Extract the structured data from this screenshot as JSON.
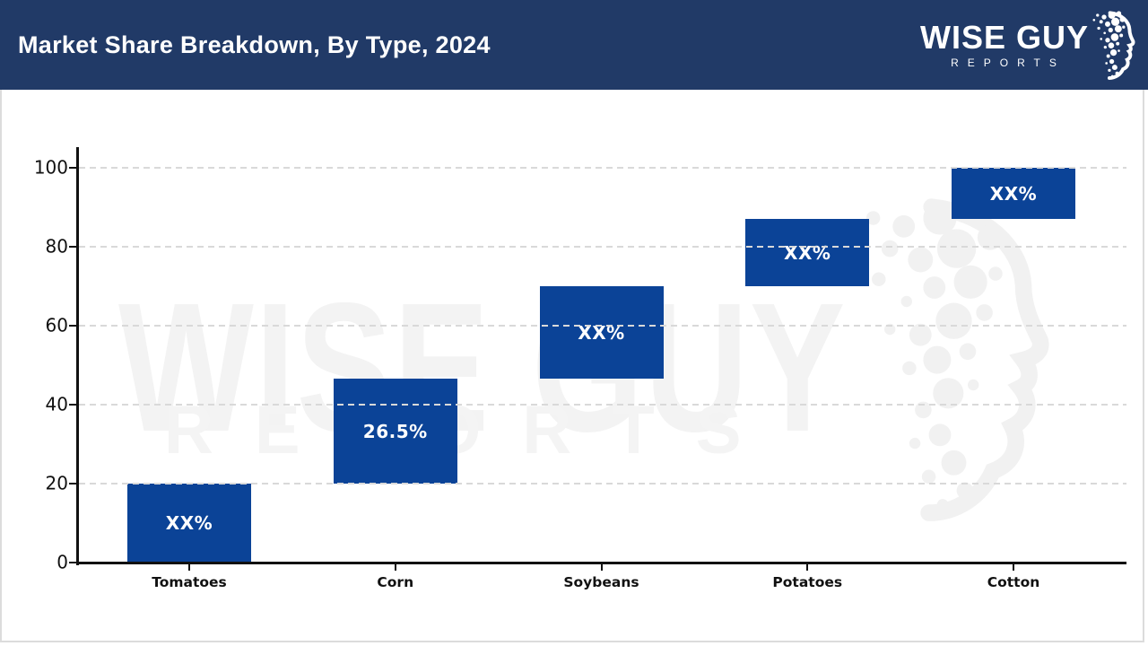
{
  "header": {
    "title": "Market Share Breakdown, By Type, 2024",
    "logo": {
      "line1": "WISE GUY",
      "line2": "REPORTS"
    }
  },
  "watermark": {
    "line1": "WISE GUY",
    "line2": "REPORTS"
  },
  "chart_data": {
    "type": "bar",
    "subtype": "waterfall-floating-bars",
    "title": "Market Share Breakdown, By Type, 2024",
    "categories": [
      "Tomatoes",
      "Corn",
      "Soybeans",
      "Potatoes",
      "Cotton"
    ],
    "segments": [
      {
        "category": "Tomatoes",
        "start": 0,
        "end": 20,
        "label": "XX%"
      },
      {
        "category": "Corn",
        "start": 20,
        "end": 46.5,
        "label": "26.5%"
      },
      {
        "category": "Soybeans",
        "start": 46.5,
        "end": 70,
        "label": "XX%"
      },
      {
        "category": "Potatoes",
        "start": 70,
        "end": 87,
        "label": "XX%"
      },
      {
        "category": "Cotton",
        "start": 87,
        "end": 100,
        "label": "XX%"
      }
    ],
    "xlabel": "",
    "ylabel": "",
    "ylim": [
      0,
      105
    ],
    "yticks": [
      0,
      20,
      40,
      60,
      80,
      100
    ],
    "grid": "horizontal-dashed-above-bars",
    "legend": "none",
    "bar_color": "#0b4397",
    "bar_label_color": "#ffffff",
    "axis_color": "#111111",
    "grid_color": "#d9d9d9",
    "header_bg_color": "#213a67",
    "watermark_color": "#f3f3f3"
  }
}
